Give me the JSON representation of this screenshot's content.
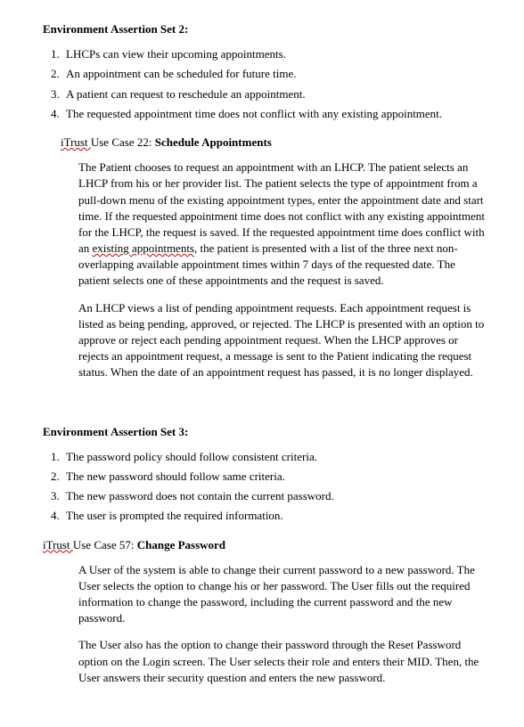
{
  "set2": {
    "title": "Environment Assertion Set 2:",
    "items": [
      "LHCPs can view their upcoming appointments.",
      "An appointment can be scheduled for future time.",
      "A patient can request to reschedule an appointment.",
      "The requested appointment time does not conflict with any existing appointment."
    ],
    "usecase": {
      "prefix_sq": "iTrust ",
      "mid": "Use Case 22: ",
      "bold": "Schedule Appointments",
      "para1a": "The Patient chooses to request an appointment with an LHCP. The patient selects an LHCP from his or her provider list. The patient selects the type of appointment from a pull-down menu of the existing appointment types, enter the appointment date and start time. If the requested appointment time does not conflict with any existing appointment for the LHCP, the request is saved. If the requested appointment time does conflict with an ",
      "para1_sq": "existing appointments",
      "para1b": ", the patient is presented with a list of the three next non-overlapping available appointment times within 7 days of the requested date. The patient selects one of these appointments and the request is saved.",
      "para2": "An LHCP views a list of pending appointment requests. Each appointment request is listed as being pending, approved, or rejected. The LHCP is presented with an option to approve or reject each pending appointment request. When the LHCP approves or rejects an appointment request, a message is sent to the Patient indicating the request status. When the date of an appointment request has passed, it is no longer displayed."
    }
  },
  "set3": {
    "title": "Environment Assertion Set 3:",
    "items": [
      "The password policy should follow consistent criteria.",
      "The new password should follow same criteria.",
      "The new password does not contain the current password.",
      "The user is prompted the required information."
    ],
    "usecase": {
      "prefix_sq": "iTrust ",
      "mid": "Use Case 57: ",
      "bold": "Change Password",
      "para1": "A User of the system is able to change their current password to a new password.  The User selects the option to change his or her password.  The User fills out the required information to change the password, including the current password and the new password.",
      "para2": "The User also has the option to change their password through the Reset Password option on the Login screen.  The User selects their role and enters their MID.  Then, the User answers their security question and enters the new password."
    }
  }
}
